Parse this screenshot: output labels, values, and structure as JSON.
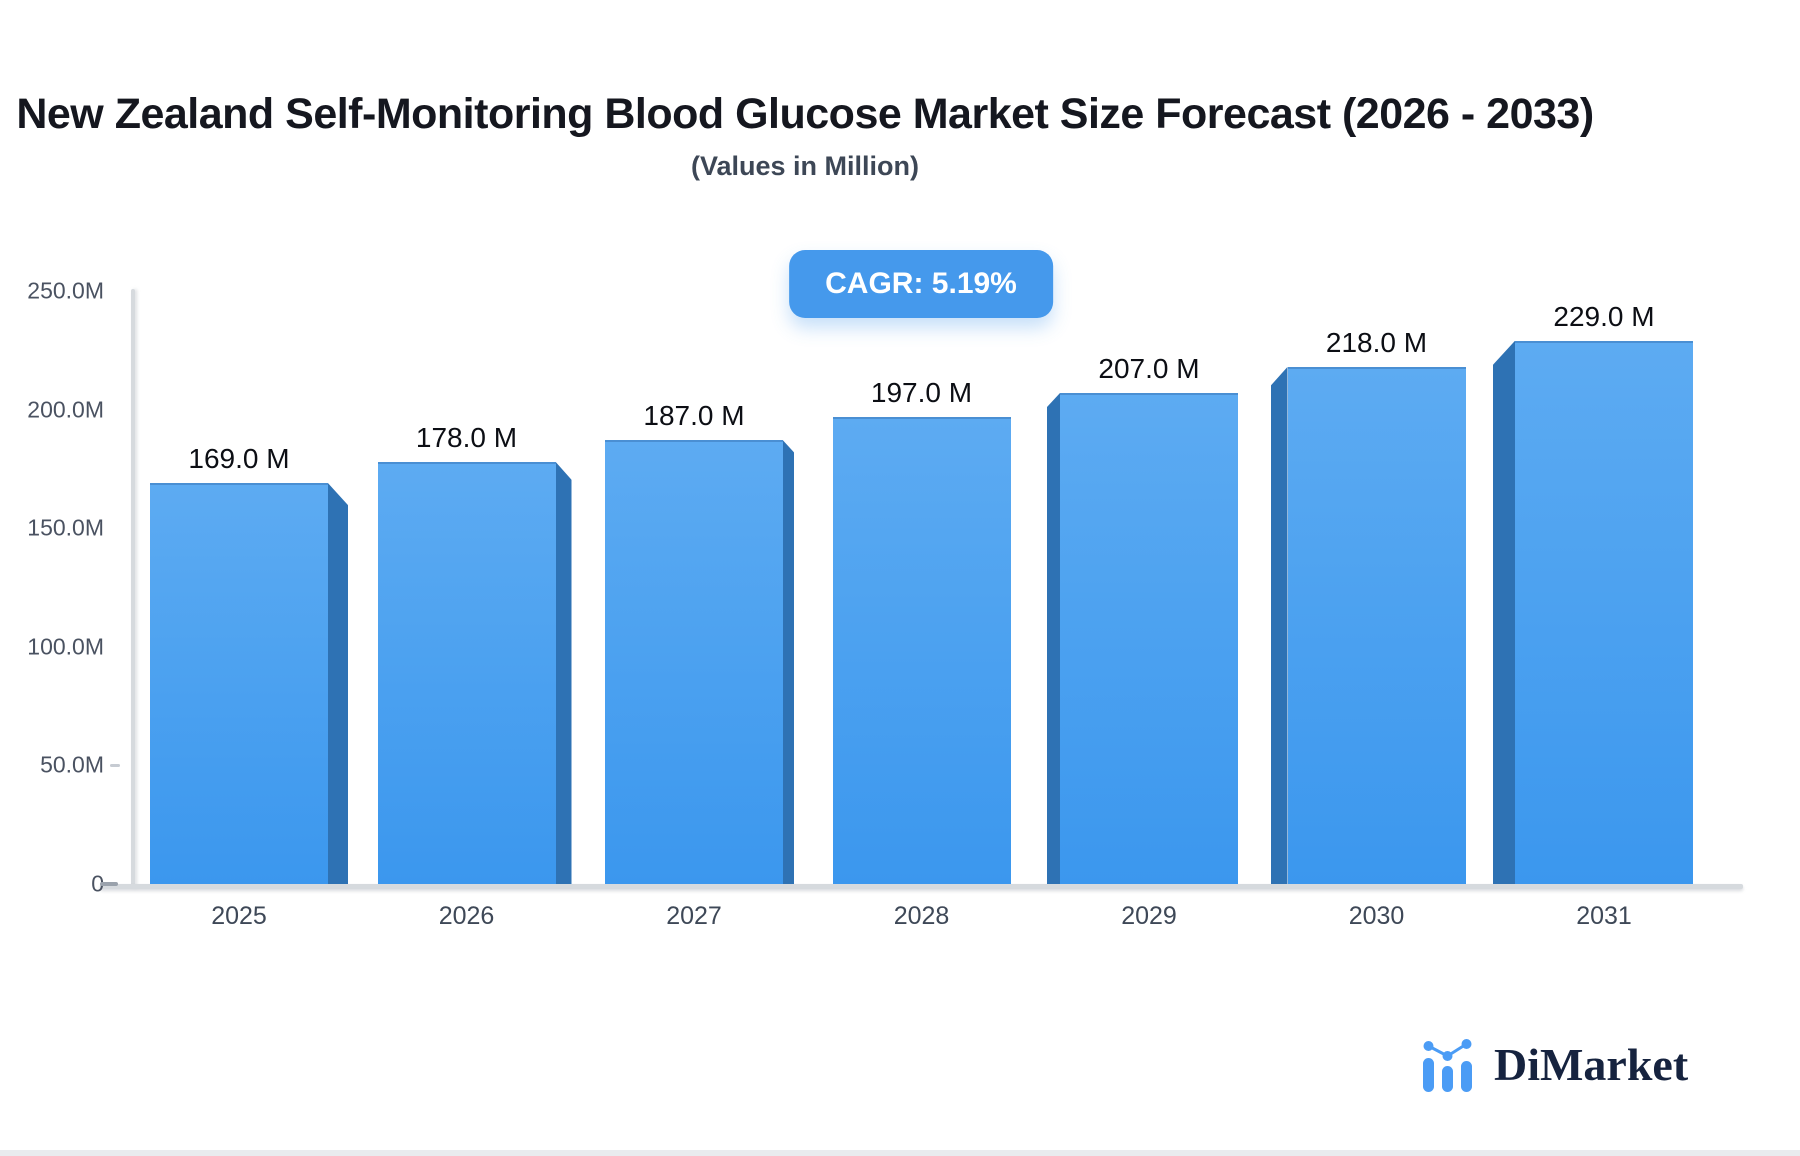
{
  "chart_data": {
    "type": "bar",
    "title": "New Zealand Self-Monitoring Blood Glucose Market Size Forecast (2026 - 2033)",
    "subtitle": "(Values in Million)",
    "categories": [
      "2025",
      "2026",
      "2027",
      "2028",
      "2029",
      "2030",
      "2031"
    ],
    "values": [
      169,
      178,
      187,
      197,
      207,
      218,
      229
    ],
    "value_labels": [
      "169.0 M",
      "178.0 M",
      "187.0 M",
      "197.0 M",
      "207.0 M",
      "218.0 M",
      "229.0 M"
    ],
    "unit": "Million",
    "annotations": [
      "CAGR: 5.19%"
    ],
    "y_axis": {
      "range": [
        0,
        250
      ],
      "ticks": [
        {
          "label": "250.0M",
          "value": 250
        },
        {
          "label": "200.0M",
          "value": 200
        },
        {
          "label": "150.0M",
          "value": 150
        },
        {
          "label": "100.0M",
          "value": 100
        },
        {
          "label": "50.0M",
          "value": 50
        },
        {
          "label": "0",
          "value": 0
        }
      ]
    },
    "grid": false,
    "legend": false,
    "colors": {
      "bar_top": "#5dabf2",
      "bar_bottom": "#3b97ee",
      "bar_side": "#2e72b4",
      "badge_bg": "#4599ec",
      "axis_line": "#d6dade"
    }
  },
  "watermark": {
    "brand": "DiMarket",
    "icon": "bar-line-chart-icon"
  }
}
